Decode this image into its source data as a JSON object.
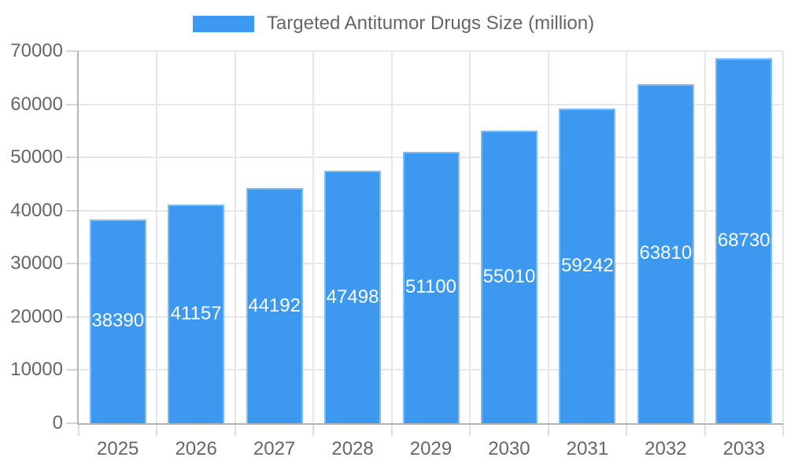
{
  "chart_data": {
    "type": "bar",
    "title": "Targeted Antitumor Drugs Size (million)",
    "legend_position": "top",
    "categories": [
      "2025",
      "2026",
      "2027",
      "2028",
      "2029",
      "2030",
      "2031",
      "2032",
      "2033"
    ],
    "series": [
      {
        "name": "Targeted Antitumor Drugs Size (million)",
        "values": [
          38390,
          41157,
          44192,
          47498,
          51100,
          55010,
          59242,
          63810,
          68730
        ]
      }
    ],
    "values": [
      38390,
      41157,
      44192,
      47498,
      51100,
      55010,
      59242,
      63810,
      68730
    ],
    "value_labels_shown": true,
    "xlabel": "",
    "ylabel": "",
    "ylim": [
      0,
      70000
    ],
    "yticks": [
      0,
      10000,
      20000,
      30000,
      40000,
      50000,
      60000,
      70000
    ],
    "grid": true,
    "bar_color": "#3C99EF",
    "bar_edge_color": "rgba(255,255,255,0.35)",
    "value_label_color": "#FFFFFF",
    "axis_text_color": "#666666",
    "gridline_color": "#e7e7e7",
    "axis_line_color": "#b4b4b4",
    "background_color": "#FFFFFF"
  }
}
